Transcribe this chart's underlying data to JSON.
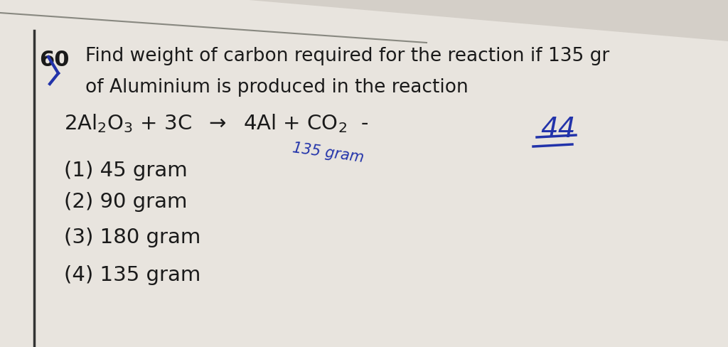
{
  "bg_color": "#c8c0b4",
  "paper_color": "#e8e4de",
  "top_paper_color": "#d4cfc8",
  "text_color": "#1a1a1a",
  "blue_color": "#2233aa",
  "q_num": "60",
  "title_line1": "Find weight of carbon required for the reaction if 135 gr",
  "title_line2": "of Aluminium is produced in the reaction",
  "options": [
    "(1) 45 gram",
    "(2) 90 gram",
    "(3) 180 gram",
    "(4) 135 gram"
  ],
  "annotation": "135 gram",
  "side_num": "44",
  "fig_width": 10.24,
  "fig_height": 4.88,
  "dpi": 100
}
